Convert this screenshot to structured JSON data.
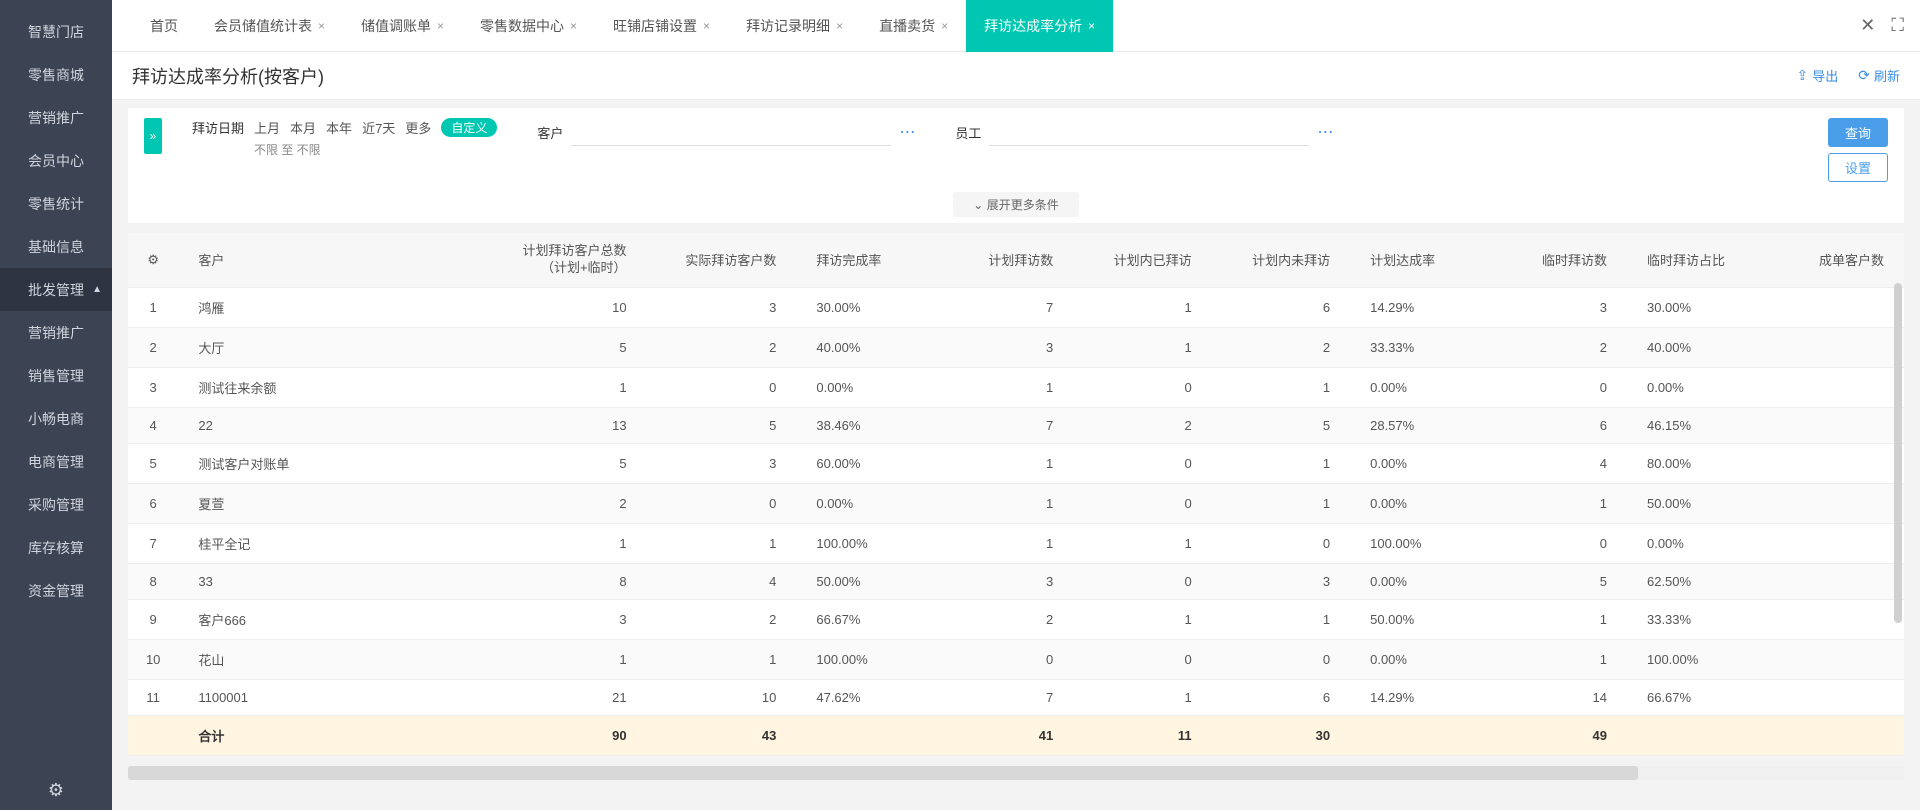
{
  "sidebar": {
    "items": [
      {
        "label": "智慧门店"
      },
      {
        "label": "零售商城"
      },
      {
        "label": "营销推广"
      },
      {
        "label": "会员中心"
      },
      {
        "label": "零售统计"
      },
      {
        "label": "基础信息"
      },
      {
        "label": "批发管理",
        "expanded": true
      },
      {
        "label": "营销推广"
      },
      {
        "label": "销售管理"
      },
      {
        "label": "小畅电商"
      },
      {
        "label": "电商管理"
      },
      {
        "label": "采购管理"
      },
      {
        "label": "库存核算"
      },
      {
        "label": "资金管理"
      }
    ]
  },
  "tabs": [
    {
      "label": "首页",
      "closable": false
    },
    {
      "label": "会员储值统计表",
      "closable": true
    },
    {
      "label": "储值调账单",
      "closable": true
    },
    {
      "label": "零售数据中心",
      "closable": true
    },
    {
      "label": "旺铺店铺设置",
      "closable": true
    },
    {
      "label": "拜访记录明细",
      "closable": true
    },
    {
      "label": "直播卖货",
      "closable": true
    },
    {
      "label": "拜访达成率分析",
      "closable": true,
      "active": true
    }
  ],
  "page": {
    "title": "拜访达成率分析(按客户)",
    "export": "导出",
    "refresh": "刷新"
  },
  "filter": {
    "date_label": "拜访日期",
    "date_opts": [
      "上月",
      "本月",
      "本年",
      "近7天",
      "更多"
    ],
    "custom": "自定义",
    "range_text": "不限 至 不限",
    "customer_label": "客户",
    "employee_label": "员工",
    "query": "查询",
    "settings": "设置",
    "expand": "展开更多条件"
  },
  "table": {
    "headers": [
      "客户",
      "计划拜访客户总数（计划+临时）",
      "实际拜访客户数",
      "拜访完成率",
      "计划拜访数",
      "计划内已拜访",
      "计划内未拜访",
      "计划达成率",
      "临时拜访数",
      "临时拜访占比",
      "成单客户数"
    ],
    "rows": [
      {
        "idx": "1",
        "customer": "鸿雁",
        "c1": "10",
        "c2": "3",
        "c3": "30.00%",
        "c4": "7",
        "c5": "1",
        "c6": "6",
        "c7": "14.29%",
        "c8": "3",
        "c9": "30.00%"
      },
      {
        "idx": "2",
        "customer": "大厅",
        "c1": "5",
        "c2": "2",
        "c3": "40.00%",
        "c4": "3",
        "c5": "1",
        "c6": "2",
        "c7": "33.33%",
        "c8": "2",
        "c9": "40.00%"
      },
      {
        "idx": "3",
        "customer": "测试往来余额",
        "c1": "1",
        "c2": "0",
        "c3": "0.00%",
        "c4": "1",
        "c5": "0",
        "c6": "1",
        "c7": "0.00%",
        "c8": "0",
        "c9": "0.00%"
      },
      {
        "idx": "4",
        "customer": "22",
        "c1": "13",
        "c2": "5",
        "c3": "38.46%",
        "c4": "7",
        "c5": "2",
        "c6": "5",
        "c7": "28.57%",
        "c8": "6",
        "c9": "46.15%"
      },
      {
        "idx": "5",
        "customer": "测试客户对账单",
        "c1": "5",
        "c2": "3",
        "c3": "60.00%",
        "c4": "1",
        "c5": "0",
        "c6": "1",
        "c7": "0.00%",
        "c8": "4",
        "c9": "80.00%"
      },
      {
        "idx": "6",
        "customer": "夏萱",
        "c1": "2",
        "c2": "0",
        "c3": "0.00%",
        "c4": "1",
        "c5": "0",
        "c6": "1",
        "c7": "0.00%",
        "c8": "1",
        "c9": "50.00%"
      },
      {
        "idx": "7",
        "customer": "桂平全记",
        "c1": "1",
        "c2": "1",
        "c3": "100.00%",
        "c4": "1",
        "c5": "1",
        "c6": "0",
        "c7": "100.00%",
        "c8": "0",
        "c9": "0.00%"
      },
      {
        "idx": "8",
        "customer": "33",
        "c1": "8",
        "c2": "4",
        "c3": "50.00%",
        "c4": "3",
        "c5": "0",
        "c6": "3",
        "c7": "0.00%",
        "c8": "5",
        "c9": "62.50%"
      },
      {
        "idx": "9",
        "customer": "客户666",
        "c1": "3",
        "c2": "2",
        "c3": "66.67%",
        "c4": "2",
        "c5": "1",
        "c6": "1",
        "c7": "50.00%",
        "c8": "1",
        "c9": "33.33%"
      },
      {
        "idx": "10",
        "customer": "花山",
        "c1": "1",
        "c2": "1",
        "c3": "100.00%",
        "c4": "0",
        "c5": "0",
        "c6": "0",
        "c7": "0.00%",
        "c8": "1",
        "c9": "100.00%"
      },
      {
        "idx": "11",
        "customer": "1100001",
        "c1": "21",
        "c2": "10",
        "c3": "47.62%",
        "c4": "7",
        "c5": "1",
        "c6": "6",
        "c7": "14.29%",
        "c8": "14",
        "c9": "66.67%"
      }
    ],
    "total": {
      "label": "合计",
      "c1": "90",
      "c2": "43",
      "c4": "41",
      "c5": "11",
      "c6": "30",
      "c8": "49"
    }
  }
}
